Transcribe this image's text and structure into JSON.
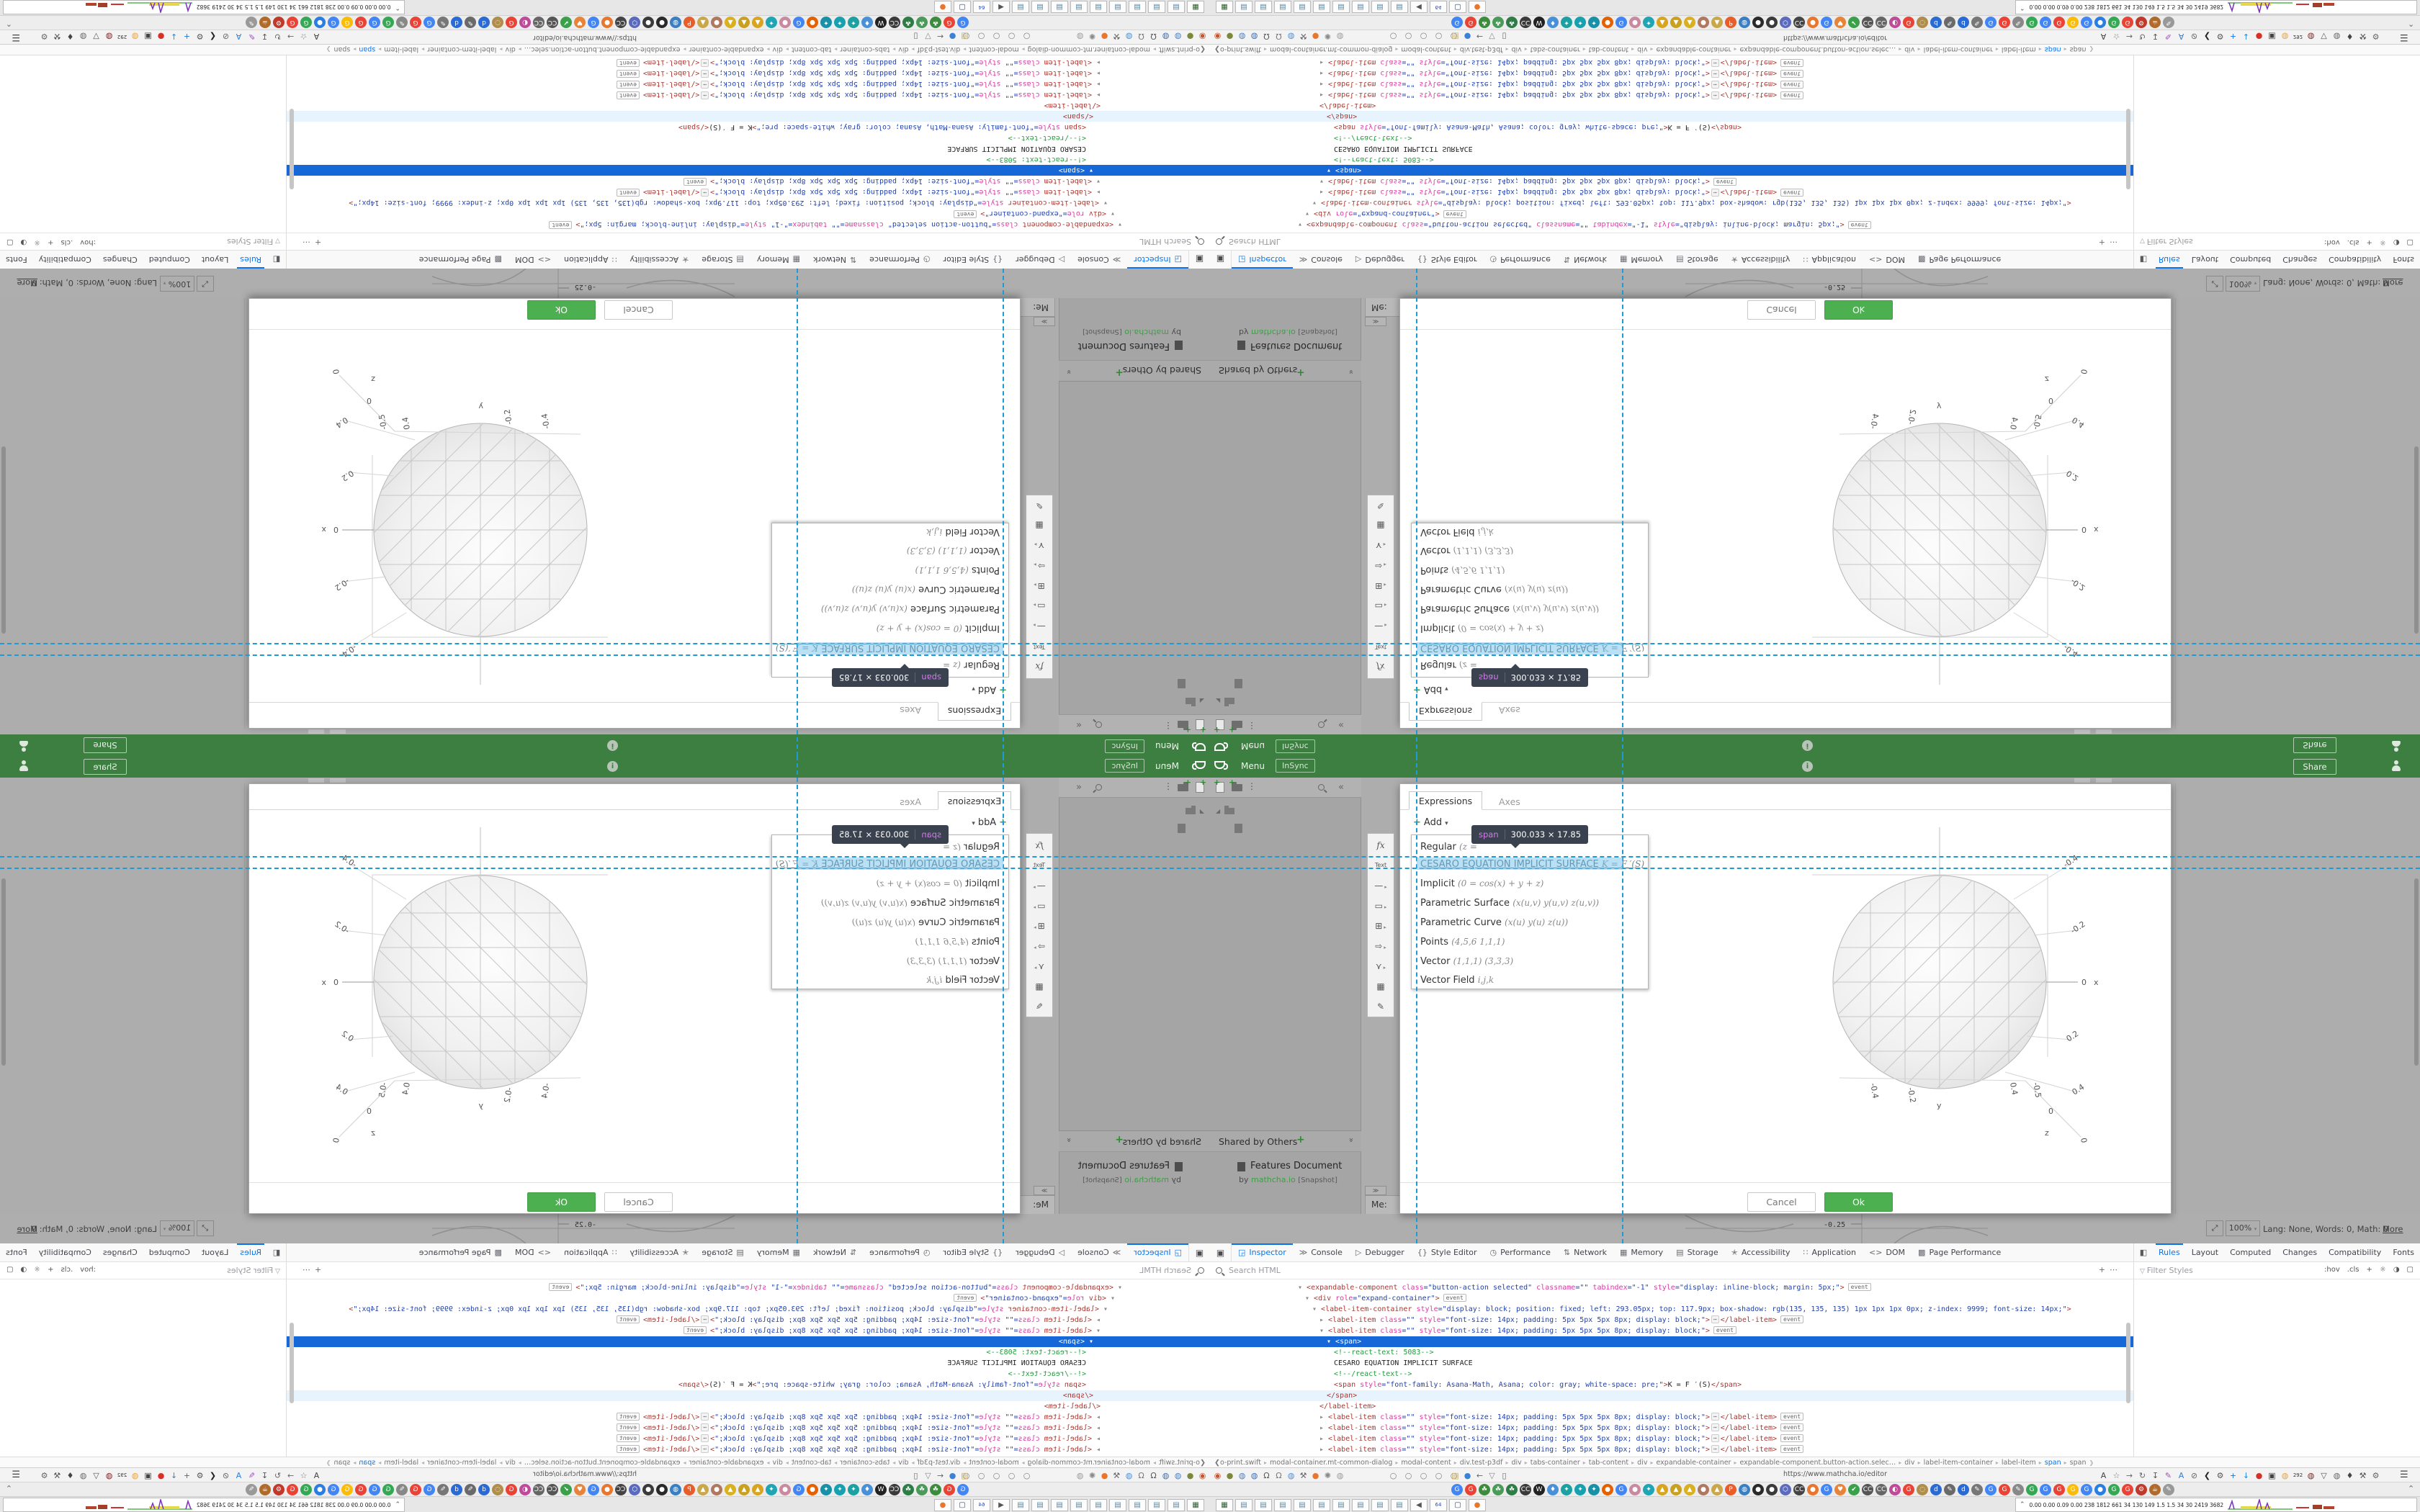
{
  "app": {
    "menu": "Menu",
    "sync_badge": "InSync",
    "share": "Share"
  },
  "drawer": {
    "section_title": "Shared by Others",
    "doc_title": "Features Document",
    "doc_by": "by",
    "doc_author": "mathcha.io",
    "doc_snapshot": "[Snapshot]",
    "chat_label": "Me:"
  },
  "dialog": {
    "tabs": [
      "Expressions",
      "Axes"
    ],
    "active_tab": "Expressions",
    "add_label": "Add",
    "menu_items": [
      {
        "name": "Regular ",
        "math": "(z =",
        "highlighted": false
      },
      {
        "name": "CESARO EQUATION IMPLICIT SURFACE ",
        "math": "K = F ′(S)",
        "highlighted": true
      },
      {
        "name": "Implicit ",
        "math": "(0 = cos(x) + y + z)",
        "highlighted": false
      },
      {
        "name": "Parametric Surface ",
        "math": "(x(u,v) y(u,v) z(u,v))",
        "highlighted": false
      },
      {
        "name": "Parametric Curve ",
        "math": "(x(u) y(u) z(u))",
        "highlighted": false
      },
      {
        "name": "Points ",
        "math": "(4,5,6 1,1,1)",
        "highlighted": false
      },
      {
        "name": "Vector ",
        "math": "(1,1,1) (3,3,3)",
        "highlighted": false
      },
      {
        "name": "Vector Field ",
        "math": "i,j,k",
        "highlighted": false
      }
    ],
    "highlight_tooltip": {
      "tag": "span",
      "size": "300.033 × 17.85"
    },
    "cancel": "Cancel",
    "ok": "Ok",
    "plot": {
      "x_label": "x",
      "y_label": "y",
      "z_label": "z",
      "x_ticks": [
        "-0.4",
        "-0.2",
        "0",
        "0.2",
        "0.4"
      ],
      "y_ticks": [
        "-0.4",
        "-0.2",
        "0.4"
      ],
      "z_ticks": [
        "-0.5",
        "0",
        "0.5"
      ]
    }
  },
  "statusbar": {
    "zoom": "100%",
    "info": "Lang: None, Words: 0, Math: 0",
    "more": "More",
    "bg_tick": "-0.25"
  },
  "devtools": {
    "tabs": [
      {
        "label": "Inspector",
        "icon": "◲",
        "active": true
      },
      {
        "label": "Console",
        "icon": "≫",
        "active": false
      },
      {
        "label": "Debugger",
        "icon": "▷",
        "active": false
      },
      {
        "label": "Style Editor",
        "icon": "{}",
        "active": false
      },
      {
        "label": "Performance",
        "icon": "◷",
        "active": false
      },
      {
        "label": "Network",
        "icon": "⇅",
        "active": false
      },
      {
        "label": "Memory",
        "icon": "▦",
        "active": false
      },
      {
        "label": "Storage",
        "icon": "▤",
        "active": false
      },
      {
        "label": "Accessibility",
        "icon": "✭",
        "active": false
      },
      {
        "label": "Application",
        "icon": "∷",
        "active": false
      },
      {
        "label": "DOM",
        "icon": "<>",
        "active": false
      },
      {
        "label": "Page Performance",
        "icon": "▩",
        "active": false
      }
    ],
    "search_placeholder": "Search HTML",
    "markup_lines": [
      {
        "ind": 0,
        "bg": "",
        "s": [
          [
            "w",
            "▾ "
          ],
          [
            "b",
            "<expandable-component"
          ],
          [
            "a",
            " class"
          ],
          [
            "v",
            "=\"button-action selected\""
          ],
          [
            "a",
            " classname"
          ],
          [
            "v",
            "=\"\""
          ],
          [
            "a",
            " tabindex"
          ],
          [
            "v",
            "=\"-1\""
          ],
          [
            "a",
            " style"
          ],
          [
            "v",
            "=\"display: inline-block; margin: 5px;\""
          ],
          [
            "b",
            ">"
          ],
          [
            "e",
            "event"
          ]
        ]
      },
      {
        "ind": 1,
        "bg": "",
        "s": [
          [
            "w",
            "▾ "
          ],
          [
            "b",
            "<div"
          ],
          [
            "a",
            " role"
          ],
          [
            "v",
            "=\"expand-container\""
          ],
          [
            "b",
            ">"
          ],
          [
            "e",
            "event"
          ]
        ]
      },
      {
        "ind": 2,
        "bg": "",
        "s": [
          [
            "w",
            "▾ "
          ],
          [
            "b",
            "<label-item-container"
          ],
          [
            "a",
            " style"
          ],
          [
            "v",
            "=\"display: block; position: fixed; left: 293.05px; top: 117.9px; box-shadow: rgb(135, 135, 135) 1px 1px 1px 0px; z-index: 9999; font-size: 14px;\""
          ],
          [
            "b",
            ">"
          ]
        ]
      },
      {
        "ind": 3,
        "bg": "",
        "s": [
          [
            "w",
            "▸ "
          ],
          [
            "b",
            "<label-item"
          ],
          [
            "a",
            " class"
          ],
          [
            "v",
            "=\"\""
          ],
          [
            "a",
            " style"
          ],
          [
            "v",
            "=\"font-size: 14px; padding: 5px 5px 5px 8px; display: block;\""
          ],
          [
            "b",
            ">"
          ],
          [
            "el",
            "⋯"
          ],
          [
            "b",
            "</label-item>"
          ],
          [
            "e",
            "event"
          ]
        ]
      },
      {
        "ind": 3,
        "bg": "",
        "s": [
          [
            "w",
            "▾ "
          ],
          [
            "b",
            "<label-item"
          ],
          [
            "a",
            " class"
          ],
          [
            "v",
            "=\"\""
          ],
          [
            "a",
            " style"
          ],
          [
            "v",
            "=\"font-size: 14px; padding: 5px 5px 5px 8px; display: block;\""
          ],
          [
            "b",
            ">"
          ],
          [
            "e",
            "event"
          ]
        ]
      },
      {
        "ind": 4,
        "bg": "sel",
        "s": [
          [
            "w",
            "▾ "
          ],
          [
            "b",
            "<span>"
          ]
        ]
      },
      {
        "ind": 5,
        "bg": "",
        "s": [
          [
            "c",
            "<!--react-text: 5083-->"
          ]
        ]
      },
      {
        "ind": 5,
        "bg": "",
        "s": [
          [
            "t",
            "CESARO EQUATION IMPLICIT SURFACE"
          ]
        ]
      },
      {
        "ind": 5,
        "bg": "",
        "s": [
          [
            "c",
            "<!--/react-text-->"
          ]
        ]
      },
      {
        "ind": 5,
        "bg": "",
        "s": [
          [
            "b",
            "<span"
          ],
          [
            "a",
            " style"
          ],
          [
            "v",
            "=\"font-family: Asana-Math, Asana; color: gray; white-space: pre;\""
          ],
          [
            "b",
            ">"
          ],
          [
            "t",
            "K = F ′(S)"
          ],
          [
            "b",
            "</span>"
          ]
        ]
      },
      {
        "ind": 4,
        "bg": "hov",
        "s": [
          [
            "b",
            "</span>"
          ]
        ]
      },
      {
        "ind": 3,
        "bg": "",
        "s": [
          [
            "b",
            "</label-item>"
          ]
        ]
      },
      {
        "ind": 3,
        "bg": "",
        "s": [
          [
            "w",
            "▸ "
          ],
          [
            "b",
            "<label-item"
          ],
          [
            "a",
            " class"
          ],
          [
            "v",
            "=\"\""
          ],
          [
            "a",
            " style"
          ],
          [
            "v",
            "=\"font-size: 14px; padding: 5px 5px 5px 8px; display: block;\""
          ],
          [
            "b",
            ">"
          ],
          [
            "el",
            "⋯"
          ],
          [
            "b",
            "</label-item>"
          ],
          [
            "e",
            "event"
          ]
        ]
      },
      {
        "ind": 3,
        "bg": "",
        "s": [
          [
            "w",
            "▸ "
          ],
          [
            "b",
            "<label-item"
          ],
          [
            "a",
            " class"
          ],
          [
            "v",
            "=\"\""
          ],
          [
            "a",
            " style"
          ],
          [
            "v",
            "=\"font-size: 14px; padding: 5px 5px 5px 8px; display: block;\""
          ],
          [
            "b",
            ">"
          ],
          [
            "el",
            "⋯"
          ],
          [
            "b",
            "</label-item>"
          ],
          [
            "e",
            "event"
          ]
        ]
      },
      {
        "ind": 3,
        "bg": "",
        "s": [
          [
            "w",
            "▸ "
          ],
          [
            "b",
            "<label-item"
          ],
          [
            "a",
            " class"
          ],
          [
            "v",
            "=\"\""
          ],
          [
            "a",
            " style"
          ],
          [
            "v",
            "=\"font-size: 14px; padding: 5px 5px 5px 8px; display: block;\""
          ],
          [
            "b",
            ">"
          ],
          [
            "el",
            "⋯"
          ],
          [
            "b",
            "</label-item>"
          ],
          [
            "e",
            "event"
          ]
        ]
      },
      {
        "ind": 3,
        "bg": "",
        "s": [
          [
            "w",
            "▸ "
          ],
          [
            "b",
            "<label-item"
          ],
          [
            "a",
            " class"
          ],
          [
            "v",
            "=\"\""
          ],
          [
            "a",
            " style"
          ],
          [
            "v",
            "=\"font-size: 14px; padding: 5px 5px 5px 8px; display: block;\""
          ],
          [
            "b",
            ">"
          ],
          [
            "el",
            "⋯"
          ],
          [
            "b",
            "</label-item>"
          ],
          [
            "e",
            "event"
          ]
        ]
      }
    ],
    "sidebar_tabs": [
      {
        "label": "Rules",
        "active": true
      },
      {
        "label": "Layout",
        "active": false
      },
      {
        "label": "Computed",
        "active": false
      },
      {
        "label": "Changes",
        "active": false
      },
      {
        "label": "Compatibility",
        "active": false
      },
      {
        "label": "Fonts",
        "active": false
      }
    ],
    "filter_placeholder": "Filter Styles",
    "rule_toolbar": [
      ":hov",
      ".cls",
      "+",
      "☼",
      "◑",
      "▢"
    ],
    "breadcrumbs": [
      {
        "t": "o-print.swift",
        "sel": false
      },
      {
        "t": "modal-container.mt-common-dialog",
        "sel": false
      },
      {
        "t": "modal-content",
        "sel": false
      },
      {
        "t": "div.test-p3df",
        "sel": false
      },
      {
        "t": "div",
        "sel": false
      },
      {
        "t": "tabs-container",
        "sel": false
      },
      {
        "t": "tab-content",
        "sel": false
      },
      {
        "t": "div",
        "sel": false
      },
      {
        "t": "expandable-container",
        "sel": false
      },
      {
        "t": "expandable-component.button-action.selec…",
        "sel": false
      },
      {
        "t": "div",
        "sel": false
      },
      {
        "t": "label-item-container",
        "sel": false
      },
      {
        "t": "label-item",
        "sel": false
      },
      {
        "t": "span",
        "sel": true
      },
      {
        "t": "span",
        "sel": false
      }
    ]
  },
  "bottom": {
    "status_url": "https://www.mathcha.io/editor",
    "perf_numbers": "0.00 0.00 0.09 0.00  238 1812 661  34  130  149  1.5  1.5  34  30  2419 3682",
    "row1_left": [
      [
        "◉",
        "#c8552b"
      ],
      [
        "●",
        "#7a8a3a"
      ],
      [
        "◍",
        "#4a7fc1"
      ],
      [
        "◍",
        "#3a6fb0"
      ],
      [
        "Ω",
        "#555555"
      ],
      [
        "Ω",
        "#777777"
      ],
      [
        "◍",
        "#4a90d9"
      ],
      [
        "⚒",
        "#666666"
      ],
      [
        "●",
        "#e8762c"
      ],
      [
        "✺",
        "#888888"
      ],
      [
        "◍",
        "#9a9a9a"
      ]
    ],
    "row1_circles": [
      [
        "○",
        "#808080"
      ],
      [
        "○",
        "#808080"
      ],
      [
        "○",
        "#808080"
      ],
      [
        "○",
        "#808080"
      ],
      [
        "○",
        "#808080"
      ]
    ],
    "row1_mid": [
      [
        "▤",
        "#c9b26a"
      ],
      [
        "●",
        "#3b82d6"
      ],
      [
        "←",
        "#666666"
      ],
      [
        "▽",
        "#888888"
      ],
      [
        "▯",
        "#666666"
      ]
    ],
    "row1_right": [
      [
        "A",
        "#444444"
      ],
      [
        "☆",
        "#777777"
      ],
      [
        "→",
        "#666666"
      ],
      [
        "↻",
        "#666666"
      ],
      [
        "↧",
        "#555555"
      ],
      [
        "✎",
        "#a04fc0"
      ],
      [
        "A",
        "#2f7fd4"
      ],
      [
        "⊘",
        "#666666"
      ],
      [
        "❮",
        "#222222"
      ],
      [
        "⚙",
        "#555555"
      ],
      [
        "+",
        "#1a73e8"
      ],
      [
        "↓",
        "#1e88e5"
      ],
      [
        "●",
        "#d93025"
      ],
      [
        "▣",
        "#444444"
      ],
      [
        "◍",
        "#e8a33d"
      ],
      [
        "292",
        "#333333"
      ],
      [
        "◍",
        "#7a1f1f"
      ],
      [
        "▽",
        "#555555"
      ],
      [
        "◍",
        "#666666"
      ],
      [
        "♦",
        "#444444"
      ],
      [
        "⚒",
        "#555555"
      ],
      [
        "⚙",
        "#666666"
      ]
    ],
    "row2": [
      [
        "G",
        "#4285f4"
      ],
      [
        "G",
        "#ea4335"
      ],
      [
        "☘",
        "#3d8b3d"
      ],
      [
        "☘",
        "#4a9a5a"
      ],
      [
        "☘",
        "#2f7d46"
      ],
      [
        "CC",
        "#3a3a3a"
      ],
      [
        "W",
        "#222222"
      ],
      [
        "♦",
        "#4a90d9"
      ],
      [
        "✦",
        "#1ba1a1"
      ],
      [
        "✦",
        "#17a0b0"
      ],
      [
        "✦",
        "#1890a8"
      ],
      [
        "●",
        "#e66000"
      ],
      [
        "G",
        "#4285f4"
      ],
      [
        "●",
        "#c98aa0"
      ],
      [
        "✦",
        "#20a5b5"
      ],
      [
        "▲",
        "#d9a520"
      ],
      [
        "▲",
        "#caa020"
      ],
      [
        "▲",
        "#d9b020"
      ],
      [
        "●",
        "#b07860"
      ],
      [
        "▲",
        "#caa84a"
      ],
      [
        "P",
        "#e85d2a"
      ],
      [
        "◍",
        "#3a7fc1"
      ],
      [
        "●",
        "#2a2a2a"
      ],
      [
        "●",
        "#3a3a3a"
      ],
      [
        "⬡",
        "#5a6abf"
      ],
      [
        "CC",
        "#444444"
      ],
      [
        "●",
        "#e8762c"
      ],
      [
        "G",
        "#4285f4"
      ],
      [
        "♥",
        "#e8833a"
      ],
      [
        "✔",
        "#3aa04a"
      ],
      [
        "CC",
        "#555555"
      ],
      [
        "CC",
        "#666666"
      ],
      [
        "◐",
        "#c04a9a"
      ],
      [
        "G",
        "#ea4335"
      ],
      [
        "◌",
        "#b08d4a"
      ],
      [
        "d",
        "#2a6ad4"
      ],
      [
        "✎",
        "#6a6a6a"
      ],
      [
        "d",
        "#2a6ad4"
      ],
      [
        "✎",
        "#777777"
      ],
      [
        "G",
        "#4285f4"
      ],
      [
        "G",
        "#ea4335"
      ],
      [
        "✎",
        "#888888"
      ],
      [
        "G",
        "#34a853"
      ],
      [
        "G",
        "#4285f4"
      ],
      [
        "G",
        "#ea4335"
      ],
      [
        "G",
        "#fbbc05"
      ],
      [
        "G",
        "#4285f4"
      ],
      [
        "●",
        "#2a7de1"
      ],
      [
        "G",
        "#34a853"
      ],
      [
        "G",
        "#ea4335"
      ],
      [
        "⚙",
        "#c0392b"
      ],
      [
        "☕",
        "#b06a2a"
      ],
      [
        "✎",
        "#999999"
      ]
    ],
    "row3": [
      [
        "▦",
        "#2e5e2e"
      ],
      [
        "▤",
        "#5a86a0"
      ],
      [
        "▤",
        "#5a86a0"
      ],
      [
        "▤",
        "#5a86a0"
      ],
      [
        "▤",
        "#5a86a0"
      ],
      [
        "▤",
        "#5a86a0"
      ],
      [
        "▤",
        "#5a86a0"
      ],
      [
        "▤",
        "#5a86a0"
      ],
      [
        "▤",
        "#5a86a0"
      ],
      [
        "▤",
        "#5a86a0"
      ],
      [
        "◀",
        "#555555"
      ],
      [
        "64",
        "#2a4fc0"
      ],
      [
        "▢",
        "#3a4a6a"
      ],
      [
        "●",
        "#e8762c"
      ]
    ]
  }
}
